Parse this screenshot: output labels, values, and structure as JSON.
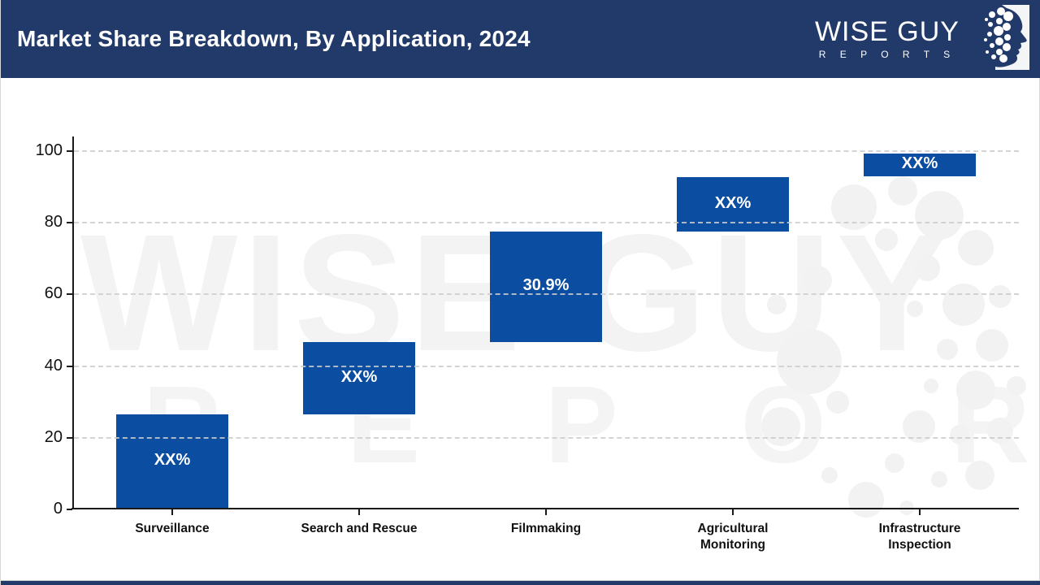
{
  "header": {
    "title": "Market Share Breakdown, By Application, 2024",
    "logo": {
      "line1": "WISE GUY",
      "line2": "R E P O R T S"
    }
  },
  "watermark": {
    "line1": "WISE GUY",
    "line2": "R E P O R T S"
  },
  "colors": {
    "navy_header": "#213a69",
    "bar_blue": "#0b4da1",
    "grid_gray": "#cdcdcd",
    "watermark_gray": "#f3f3f3",
    "axis_black": "#1a1a1a"
  },
  "chart_data": {
    "type": "bar",
    "subtype": "waterfall-floating-bars",
    "title": "Market Share Breakdown, By Application, 2024",
    "xlabel": "",
    "ylabel": "",
    "categories": [
      "Surveillance",
      "Search and Rescue",
      "Filmmaking",
      "Agricultural Monitoring",
      "Infrastructure Inspection"
    ],
    "category_label_lines": [
      [
        "Surveillance"
      ],
      [
        "Search and Rescue"
      ],
      [
        "Filmmaking"
      ],
      [
        "Agricultural",
        "Monitoring"
      ],
      [
        "Infrastructure",
        "Inspection"
      ]
    ],
    "segments": [
      {
        "category": "Surveillance",
        "start": 0,
        "end": 26.6,
        "label": "XX%"
      },
      {
        "category": "Search and Rescue",
        "start": 26.6,
        "end": 46.6,
        "label": "XX%"
      },
      {
        "category": "Filmmaking",
        "start": 46.6,
        "end": 77.5,
        "label": "30.9%"
      },
      {
        "category": "Agricultural Monitoring",
        "start": 77.5,
        "end": 92.7,
        "label": "XX%"
      },
      {
        "category": "Infrastructure Inspection",
        "start": 92.9,
        "end": 99.4,
        "label": "XX%"
      }
    ],
    "y_ticks": [
      0,
      20,
      40,
      60,
      80,
      100
    ],
    "ylim": [
      0,
      100
    ],
    "grid": true,
    "grid_style": "dashed",
    "legend": false,
    "bar_color": "#0b4da1",
    "bar_label_color": "#ffffff"
  }
}
